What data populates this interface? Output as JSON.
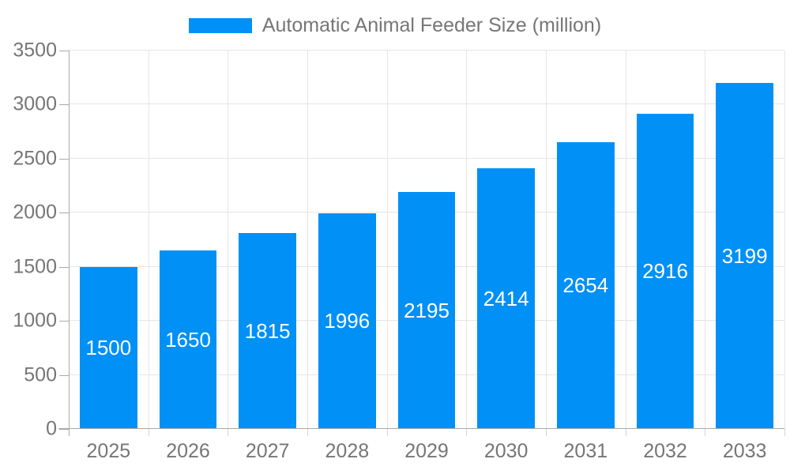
{
  "page": {
    "background": "#ffffff"
  },
  "legend": {
    "label": "Automatic Animal Feeder Size (million)",
    "position": "top-center"
  },
  "chart_data": {
    "type": "bar",
    "title": "Automatic Animal Feeder Size (million)",
    "series_name": "Automatic Animal Feeder Size (million)",
    "categories": [
      "2025",
      "2026",
      "2027",
      "2028",
      "2029",
      "2030",
      "2031",
      "2032",
      "2033"
    ],
    "values": [
      1500,
      1650,
      1815,
      1996,
      2195,
      2414,
      2654,
      2916,
      3199
    ],
    "bar_value_labels": [
      "1500",
      "1650",
      "1815",
      "1996",
      "2195",
      "2414",
      "2654",
      "2916",
      "3199"
    ],
    "xlabel": "",
    "ylabel": "",
    "ylim": [
      0,
      3500
    ],
    "yticks": [
      0,
      500,
      1000,
      1500,
      2000,
      2500,
      3000,
      3500
    ],
    "ytick_labels": [
      "0",
      "500",
      "1000",
      "1500",
      "2000",
      "2500",
      "3000",
      "3500"
    ],
    "grid": true,
    "legend_position": "top",
    "bar_labels_visible": true,
    "colors": {
      "bar": "#0190f6",
      "bar_label": "#ffffff",
      "grid_line": "#e5e5e5",
      "axis_line": "#aaaaaa",
      "tick_mark": "#d4d4d4",
      "tick_text": "#767676",
      "legend_text": "#767676",
      "background": "#ffffff"
    }
  }
}
